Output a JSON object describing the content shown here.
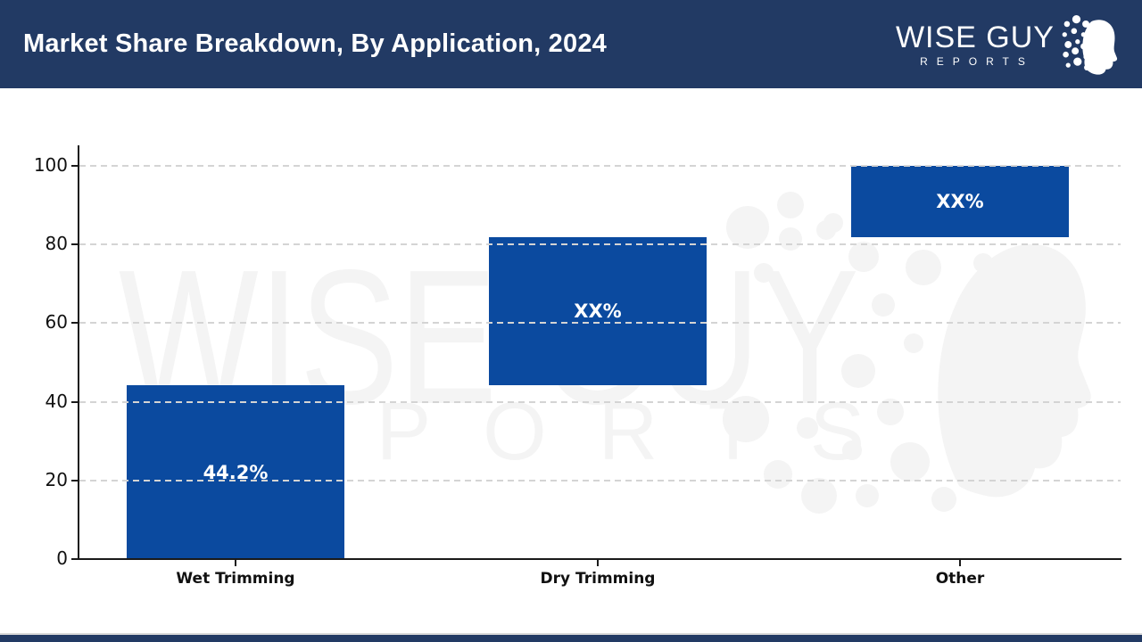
{
  "header": {
    "title": "Market Share Breakdown, By Application, 2024",
    "logo_line1": "WISE GUY",
    "logo_line2": "REPORTS"
  },
  "watermark": {
    "line1": "WISE GUY",
    "line2": "REPORTS"
  },
  "colors": {
    "header_bg": "#223a64",
    "bar": "#0b4a9f",
    "grid": "#d4d4d4",
    "watermark": "#f4f4f4",
    "bar_label": "#ffffff"
  },
  "chart_data": {
    "type": "bar",
    "subtype": "waterfall",
    "title": "Market Share Breakdown, By Application, 2024",
    "categories": [
      "Wet Trimming",
      "Dry Trimming",
      "Other"
    ],
    "series": [
      {
        "name": "Market Share (%)",
        "segments": [
          {
            "category": "Wet Trimming",
            "start": 0,
            "end": 44.2,
            "label": "44.2%"
          },
          {
            "category": "Dry Trimming",
            "start": 44.2,
            "end": 81.8,
            "label": "XX%"
          },
          {
            "category": "Other",
            "start": 81.8,
            "end": 100,
            "label": "XX%"
          }
        ]
      }
    ],
    "ylim": [
      0,
      100
    ],
    "yticks": [
      0,
      20,
      40,
      60,
      80,
      100
    ],
    "grid": "dashed-horizontal",
    "legend": "none",
    "xlabel": "",
    "ylabel": ""
  }
}
